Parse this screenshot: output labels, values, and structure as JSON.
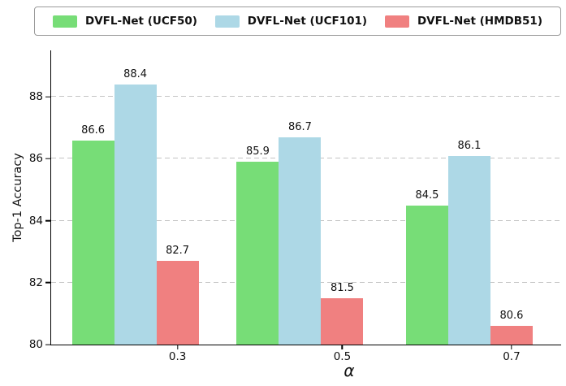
{
  "chart_data": {
    "type": "bar",
    "title": "",
    "xlabel": "α",
    "ylabel": "Top-1 Accuracy",
    "categories": [
      "0.3",
      "0.5",
      "0.7"
    ],
    "series": [
      {
        "name": "DVFL-Net (UCF50)",
        "color": "#77DD77",
        "values": [
          86.6,
          85.9,
          84.5
        ]
      },
      {
        "name": "DVFL-Net (UCF101)",
        "color": "#ADD8E6",
        "values": [
          88.4,
          86.7,
          86.1
        ]
      },
      {
        "name": "DVFL-Net (HMDB51)",
        "color": "#F08080",
        "values": [
          82.7,
          81.5,
          80.6
        ]
      }
    ],
    "ylim": [
      80,
      89.5
    ],
    "yticks": [
      80,
      82,
      84,
      86,
      88
    ],
    "grid": "dashed-horizontal",
    "legend_position": "top",
    "value_labels": true
  }
}
